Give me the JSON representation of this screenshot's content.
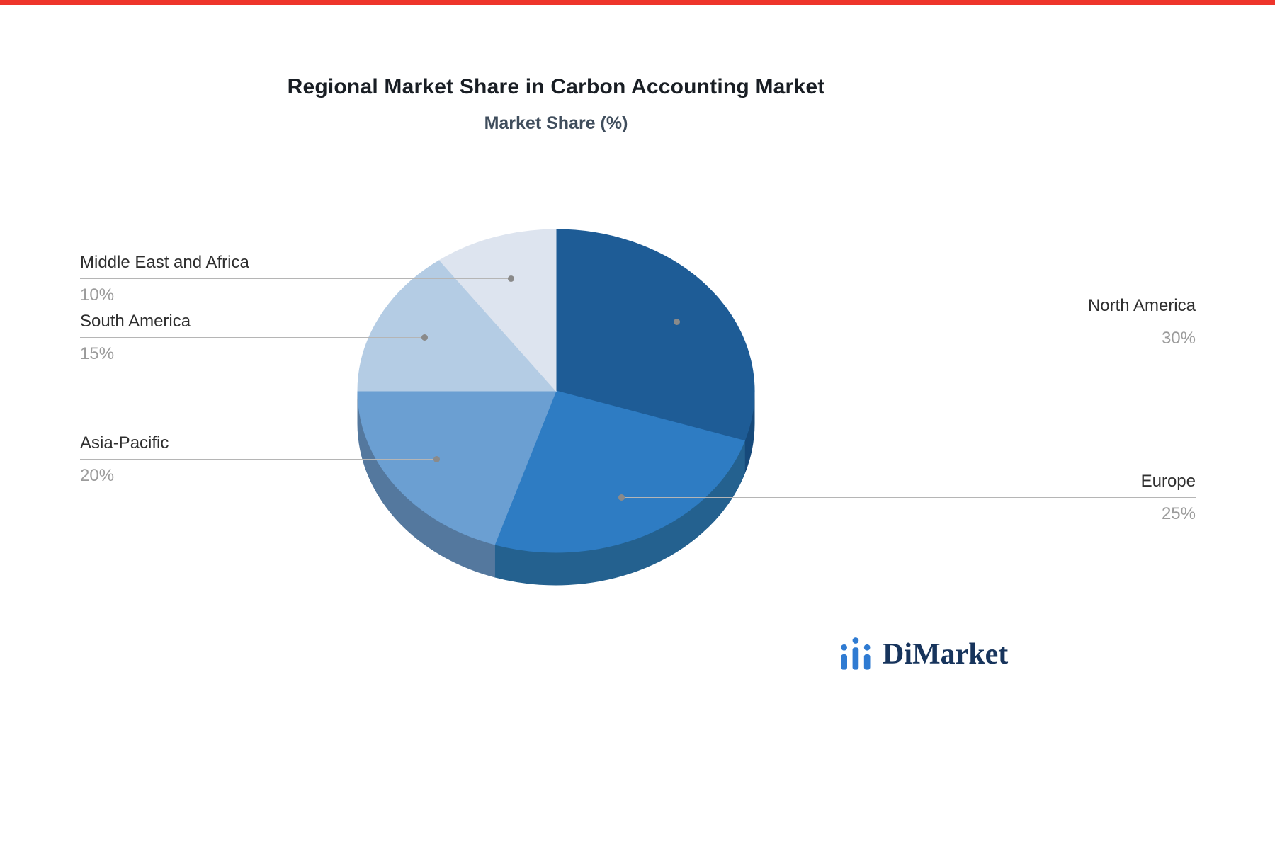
{
  "page": {
    "title": "Regional Market Share in Carbon Accounting Market",
    "subtitle": "Market Share (%)"
  },
  "branding": {
    "logo_text": "DiMarket",
    "logo_icon": "bar-chart-logo-icon",
    "text_color": "#17345c",
    "icon_color": "#2f7bd2"
  },
  "colors": {
    "top_accent_bar": "#ee352b",
    "background": "#ffffff",
    "leader_line": "#b5b5b5",
    "leader_dot": "#8a8a8a",
    "label_text": "#2f2f2f",
    "value_text": "#9b9b9b",
    "title_text": "#191e24",
    "subtitle_text": "#3f4d5c"
  },
  "chart_data": {
    "type": "pie",
    "title": "Regional Market Share in Carbon Accounting Market",
    "subtitle": "Market Share (%)",
    "unit": "%",
    "style": "3d",
    "start_angle_deg": 0,
    "direction": "clockwise",
    "legend_position": "none",
    "labels": [
      "North America",
      "Europe",
      "Asia-Pacific",
      "South America",
      "Middle East and Africa"
    ],
    "values": [
      30,
      25,
      20,
      15,
      10
    ],
    "display_values": [
      "30%",
      "25%",
      "20%",
      "15%",
      "10%"
    ],
    "colors": [
      "#1e5c96",
      "#2e7cc3",
      "#6b9fd2",
      "#b4cce4",
      "#dde4ef"
    ],
    "side_colors": [
      "#16497a",
      "#24618f",
      "#54789e",
      "#8fa6bd",
      "#b6bfc9"
    ]
  }
}
